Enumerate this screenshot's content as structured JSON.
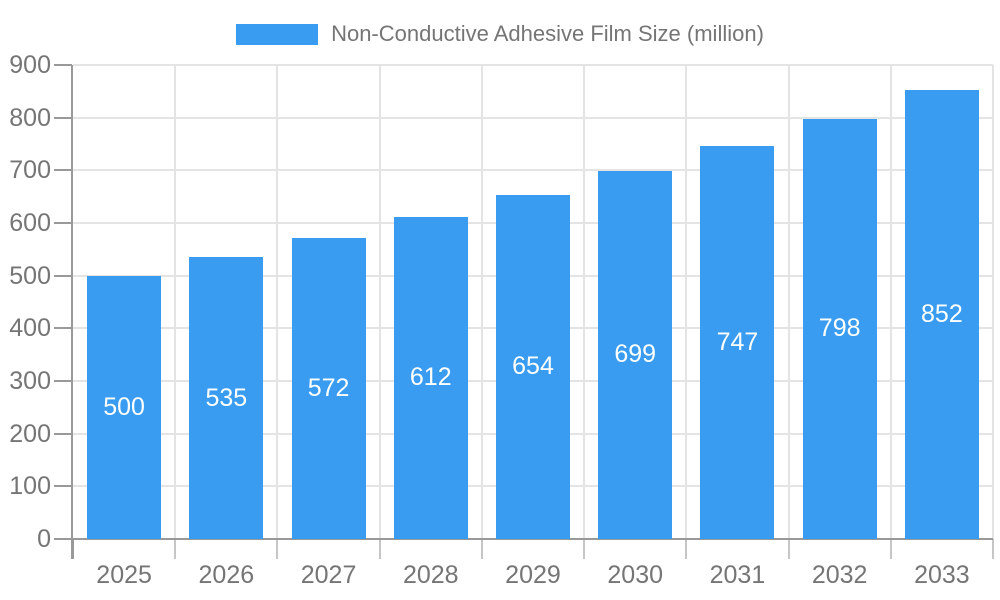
{
  "legend": {
    "label": "Non-Conductive Adhesive Film Size (million)"
  },
  "chart_data": {
    "type": "bar",
    "title": "Non-Conductive Adhesive Film Size (million)",
    "categories": [
      "2025",
      "2026",
      "2027",
      "2028",
      "2029",
      "2030",
      "2031",
      "2032",
      "2033"
    ],
    "values": [
      500,
      535,
      572,
      612,
      654,
      699,
      747,
      798,
      852
    ],
    "series": [
      {
        "name": "Non-Conductive Adhesive Film Size (million)",
        "values": [
          500,
          535,
          572,
          612,
          654,
          699,
          747,
          798,
          852
        ]
      }
    ],
    "xlabel": "",
    "ylabel": "",
    "ylim": [
      0,
      900
    ],
    "yticks": [
      0,
      100,
      200,
      300,
      400,
      500,
      600,
      700,
      800,
      900
    ],
    "grid": true,
    "legend_position": "top",
    "value_label_position": "inside-center"
  },
  "theme": {
    "bar_color": "#399CF0",
    "grid_color": "#E4E4E4",
    "axis_color": "#999999",
    "minor_tick_color": "#C6C6C6",
    "label_color": "#757575",
    "value_label_color": "#FFFFFF",
    "background": "#FFFFFF"
  }
}
